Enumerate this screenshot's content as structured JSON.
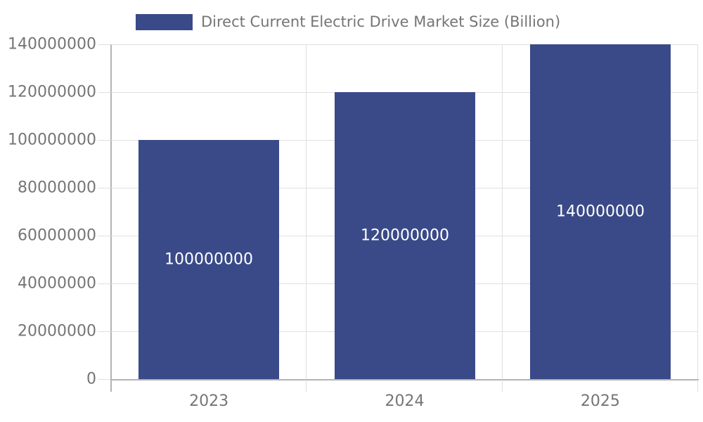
{
  "legend": {
    "label": "Direct Current Electric Drive Market Size (Billion)"
  },
  "colors": {
    "bar": "#3a4a88",
    "text": "#757575",
    "grid": "#e0e0e0",
    "axis": "#b3b3b3",
    "bar_label": "#ffffff",
    "background": "#ffffff"
  },
  "chart_data": {
    "type": "bar",
    "title": "Direct Current Electric Drive Market Size (Billion)",
    "categories": [
      "2023",
      "2024",
      "2025"
    ],
    "values": [
      100000000,
      120000000,
      140000000
    ],
    "bar_labels": [
      "100000000",
      "120000000",
      "140000000"
    ],
    "xlabel": "",
    "ylabel": "",
    "ylim": [
      0,
      140000000
    ],
    "yticks": [
      0,
      20000000,
      40000000,
      60000000,
      80000000,
      100000000,
      120000000,
      140000000
    ],
    "ytick_labels": [
      "0",
      "20000000",
      "40000000",
      "60000000",
      "80000000",
      "100000000",
      "120000000",
      "140000000"
    ],
    "grid": true,
    "legend_position": "top-center",
    "bar_width_fraction": 0.72
  }
}
